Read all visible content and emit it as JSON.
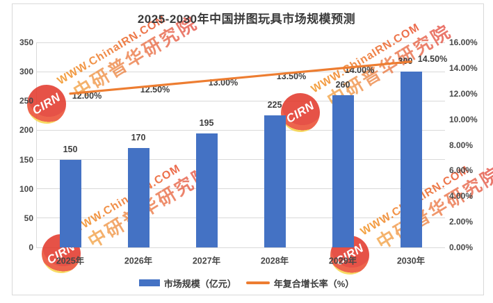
{
  "title": "2025-2030年中国拼图玩具市场规模预测",
  "watermark": {
    "logo_text": "CIRN",
    "site_text": "WWW.ChinaIRN.COM",
    "org_text": "中研普华研究院"
  },
  "legend": [
    {
      "label": "市场规模（亿元）",
      "swatch": "bar",
      "color": "#4472C4"
    },
    {
      "label": "年复合增长率（%）",
      "swatch": "line",
      "color": "#ED7D31"
    }
  ],
  "chart_data": {
    "type": "bar+line combo",
    "title": "2025-2030年中国拼图玩具市场规模预测",
    "categories": [
      "2025年",
      "2026年",
      "2027年",
      "2028年",
      "2029年",
      "2030年"
    ],
    "series": [
      {
        "name": "市场规模（亿元）",
        "type": "bar",
        "axis": "left",
        "values": [
          150,
          170,
          195,
          225,
          260,
          300
        ],
        "labels": [
          "150",
          "170",
          "195",
          "225",
          "260",
          "300"
        ],
        "color": "#4472C4"
      },
      {
        "name": "年复合增长率（%）",
        "type": "line",
        "axis": "right",
        "values": [
          12.0,
          12.5,
          13.0,
          13.5,
          14.0,
          14.5
        ],
        "labels": [
          "12.00%",
          "12.50%",
          "13.00%",
          "13.50%",
          "14.00%",
          "14.50%"
        ],
        "color": "#ED7D31"
      }
    ],
    "left_axis": {
      "min": 0,
      "max": 350,
      "tick_labels": [
        "0",
        "50",
        "100",
        "150",
        "200",
        "250",
        "300",
        "350"
      ]
    },
    "right_axis": {
      "min": 0,
      "max": 16,
      "tick_labels": [
        "0.00%",
        "2.00%",
        "4.00%",
        "6.00%",
        "8.00%",
        "10.00%",
        "12.00%",
        "14.00%",
        "16.00%"
      ]
    },
    "grid": true,
    "legend_position": "bottom"
  }
}
